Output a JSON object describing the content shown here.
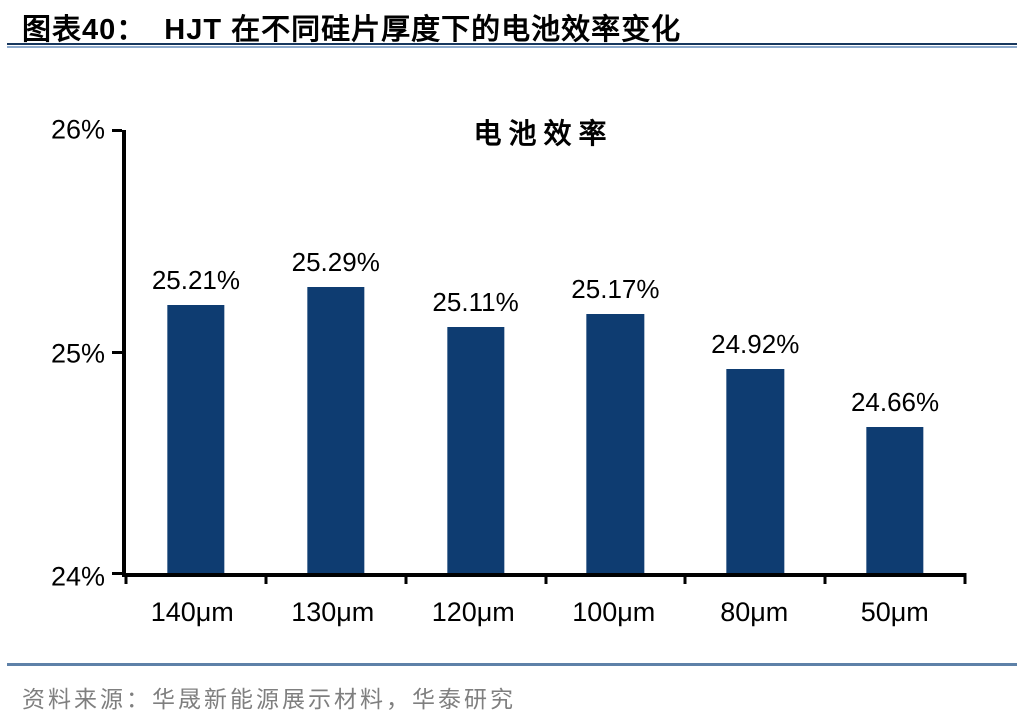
{
  "header": {
    "figure_label": "图表40：",
    "title": "HJT 在不同硅片厚度下的电池效率变化"
  },
  "footer": {
    "source": "资料来源：华晟新能源展示材料，华泰研究"
  },
  "colors": {
    "bar": "#0E3C71",
    "header_rule_dark": "#17375E",
    "header_rule_light": "#8CA9CC",
    "footer_rule": "#5E81A8",
    "footer_text": "#7F7F7F",
    "axis": "#000000"
  },
  "chart_data": {
    "type": "bar",
    "title": "电池效率",
    "categories": [
      "140μm",
      "130μm",
      "120μm",
      "100μm",
      "80μm",
      "50μm"
    ],
    "values": [
      25.21,
      25.29,
      25.11,
      25.17,
      24.92,
      24.66
    ],
    "value_labels": [
      "25.21%",
      "25.29%",
      "25.11%",
      "25.17%",
      "24.92%",
      "24.66%"
    ],
    "xlabel": "",
    "ylabel": "",
    "ylim": [
      24,
      26
    ],
    "yticks": [
      {
        "value": 26,
        "label": "26%"
      },
      {
        "value": 25,
        "label": "25%"
      },
      {
        "value": 24,
        "label": "24%"
      }
    ],
    "grid": false,
    "legend": "none",
    "bar_color": "#0E3C71"
  }
}
